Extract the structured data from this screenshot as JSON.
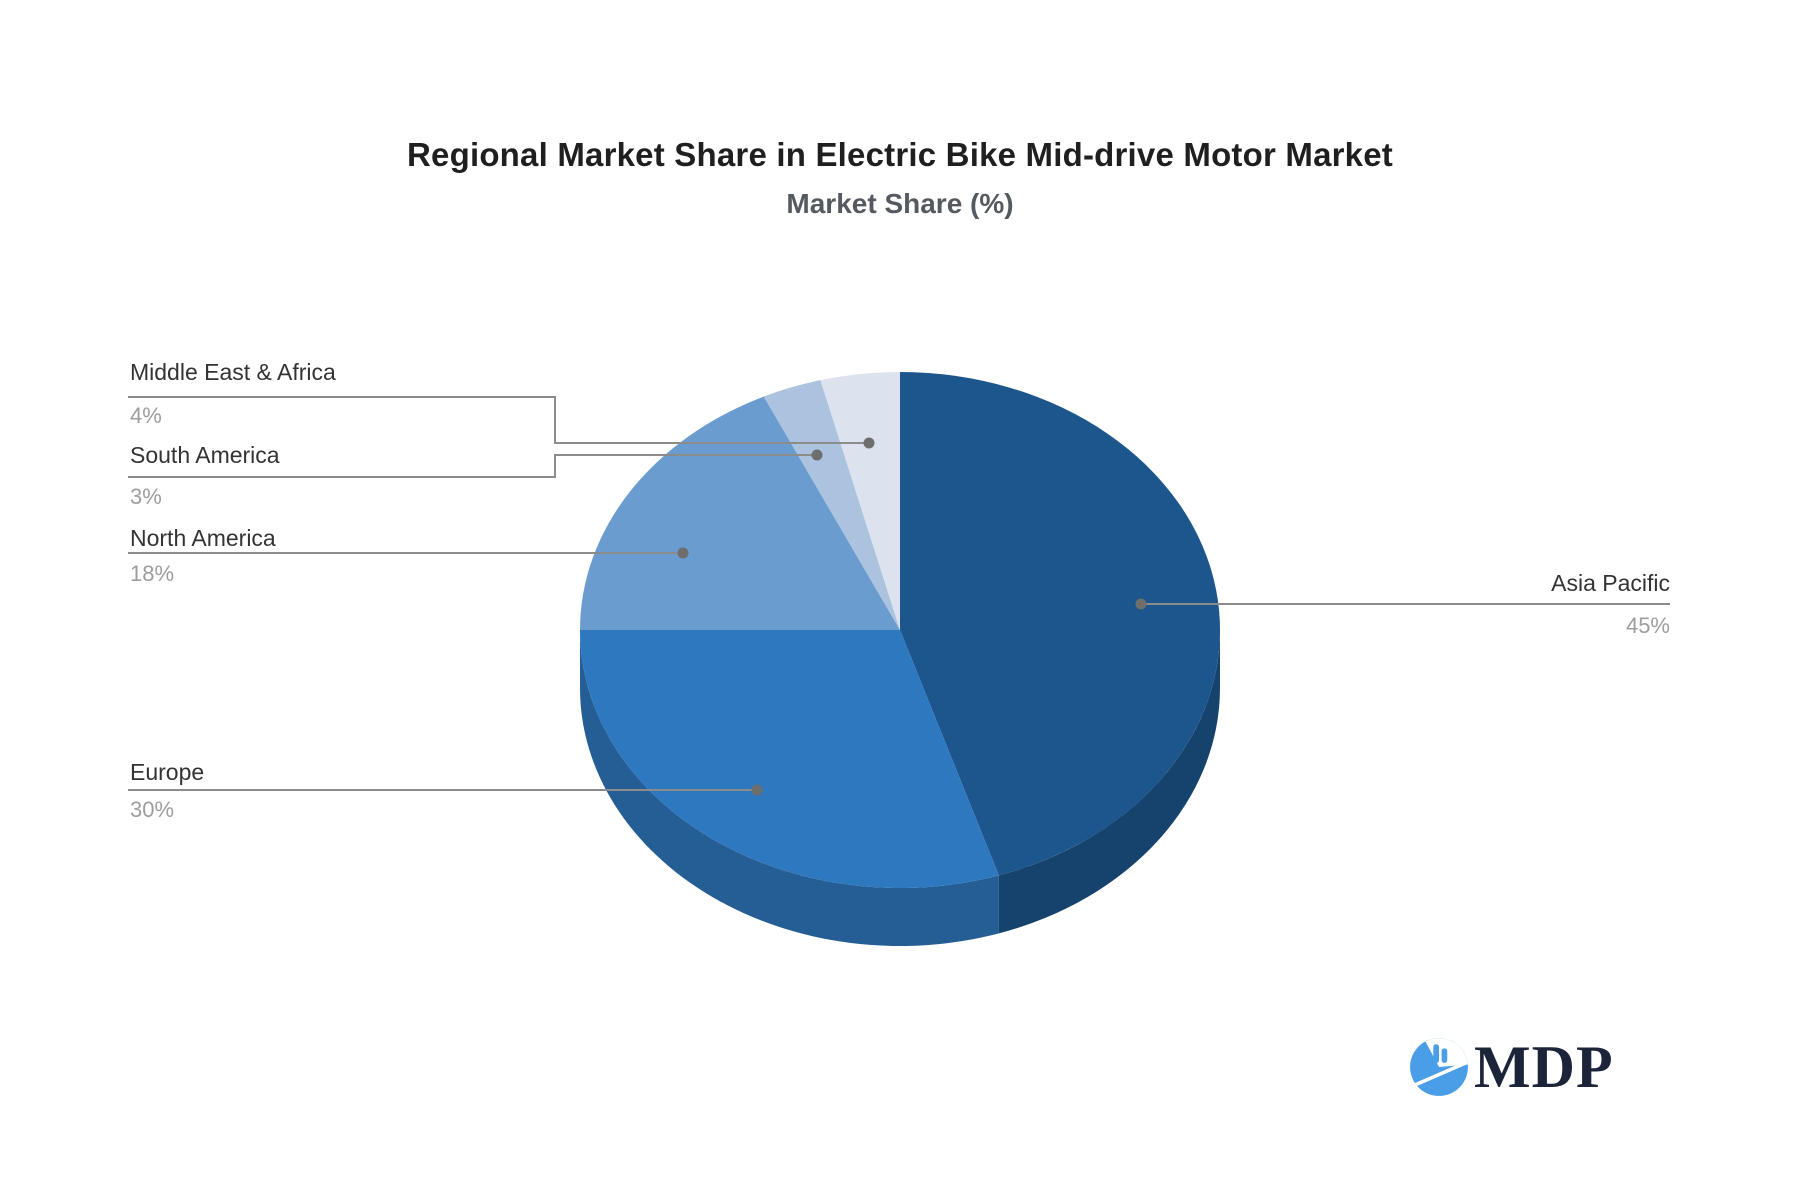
{
  "title": "Regional Market Share in Electric Bike Mid-drive Motor Market",
  "subtitle": "Market Share (%)",
  "logo": {
    "text": "MDP",
    "icon": "pie-bars-icon",
    "icon_color": "#4A9EE8",
    "text_color": "#1B2438"
  },
  "chart_data": {
    "type": "pie",
    "style": "3d",
    "title": "Regional Market Share in Electric Bike Mid-drive Motor Market",
    "subtitle": "Market Share (%)",
    "unit": "%",
    "direction": "clockwise",
    "start_angle": "12-oclock",
    "slices": [
      {
        "name": "Asia Pacific",
        "value": 45,
        "label": "45%",
        "color": "#1C568C"
      },
      {
        "name": "Europe",
        "value": 30,
        "label": "30%",
        "color": "#2E78BF"
      },
      {
        "name": "North America",
        "value": 18,
        "label": "18%",
        "color": "#6B9CCF"
      },
      {
        "name": "South America",
        "value": 3,
        "label": "3%",
        "color": "#ABC3DE"
      },
      {
        "name": "Middle East & Africa",
        "value": 4,
        "label": "4%",
        "color": "#DDE3EE"
      }
    ],
    "colors": {
      "leader_line": "#8C8C8C",
      "dot": "#6E6E6E",
      "name_text": "#333333",
      "value_text": "#9D9D9D"
    },
    "legend": "none",
    "labels": "outside-with-leader-lines"
  }
}
